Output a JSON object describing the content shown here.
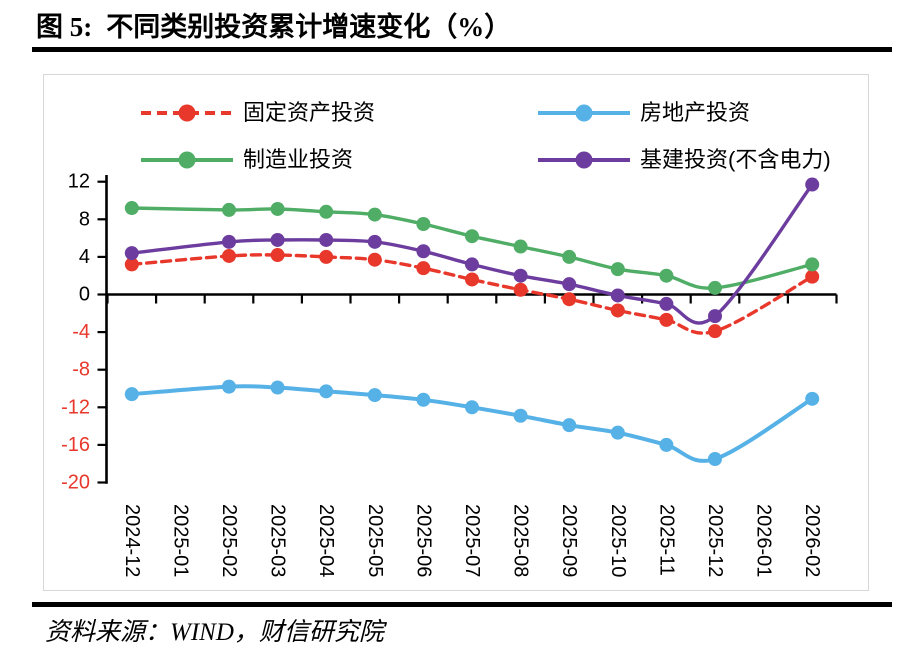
{
  "title": {
    "prefix": "图 5:",
    "text": "不同类别投资累计增速变化（%）"
  },
  "source_note": "资料来源：WIND，财信研究院",
  "colors": {
    "fixed_asset": "#e8372b",
    "real_estate": "#55b1e6",
    "manufacturing": "#4fad66",
    "infrastructure": "#6c3d9e",
    "negative_tick_label": "#e8372b",
    "positive_tick_label": "#000000",
    "axis": "#000000"
  },
  "legend": {
    "items": [
      {
        "label": "固定资产投资"
      },
      {
        "label": "房地产投资"
      },
      {
        "label": "制造业投资"
      },
      {
        "label": "基建投资(不含电力)"
      }
    ]
  },
  "chart_data": {
    "type": "line",
    "title": "不同类别投资累计增速变化（%）",
    "categories": [
      "2024-12",
      "2025-01",
      "2025-02",
      "2025-03",
      "2025-04",
      "2025-05",
      "2025-06",
      "2025-07",
      "2025-08",
      "2025-09",
      "2025-10",
      "2025-11",
      "2025-12",
      "2026-01",
      "2026-02"
    ],
    "series": [
      {
        "key": "fixed-asset-investment",
        "name": "固定资产投资",
        "color": "#e8372b",
        "style": "dashed",
        "values": [
          3.2,
          null,
          4.1,
          4.2,
          4.0,
          3.7,
          2.8,
          1.6,
          0.5,
          -0.5,
          -1.7,
          -2.7,
          -3.9,
          null,
          1.9
        ]
      },
      {
        "key": "real-estate-investment",
        "name": "房地产投资",
        "color": "#55b1e6",
        "style": "solid",
        "values": [
          -10.6,
          null,
          -9.8,
          -9.9,
          -10.3,
          -10.7,
          -11.2,
          -12.0,
          -12.9,
          -13.9,
          -14.7,
          -16.0,
          -17.5,
          null,
          -11.1
        ]
      },
      {
        "key": "manufacturing-investment",
        "name": "制造业投资",
        "color": "#4fad66",
        "style": "solid",
        "values": [
          9.2,
          null,
          9.0,
          9.1,
          8.8,
          8.5,
          7.5,
          6.2,
          5.1,
          4.0,
          2.7,
          2.0,
          0.7,
          null,
          3.2
        ]
      },
      {
        "key": "infrastructure-investment",
        "name": "基建投资(不含电力)",
        "color": "#6c3d9e",
        "style": "solid",
        "values": [
          4.4,
          null,
          5.6,
          5.8,
          5.8,
          5.6,
          4.6,
          3.2,
          2.0,
          1.1,
          -0.1,
          -1.0,
          -2.3,
          null,
          11.7
        ]
      }
    ],
    "ylim": [
      -20,
      12
    ],
    "ytick_step": 4,
    "grid": false,
    "legend_position": "top",
    "x_label_rotation": 90,
    "x_labels_skipped_data": [
      "2025-01",
      "2026-01"
    ]
  }
}
